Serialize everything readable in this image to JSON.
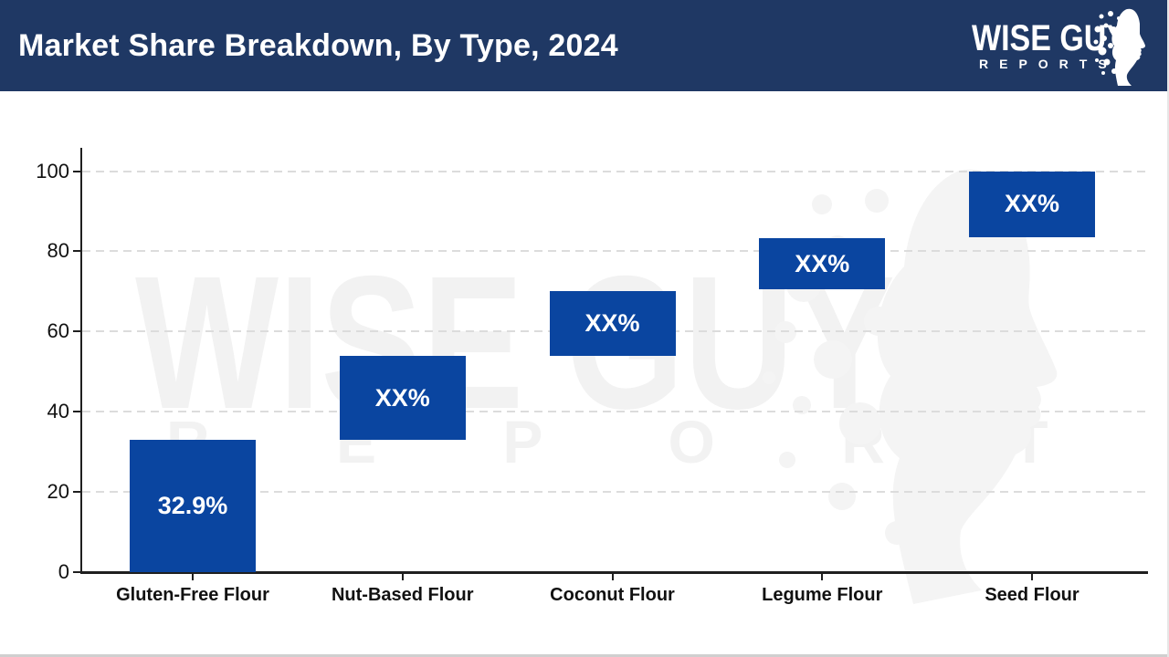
{
  "header": {
    "title": "Market Share Breakdown, By Type, 2024",
    "logo": {
      "line1": "WISE GUY",
      "line2": "REPORTS"
    }
  },
  "watermark": {
    "line1": "WISE GUY",
    "line2": "R E P O R T S"
  },
  "colors": {
    "header_bg": "#1f3864",
    "bar": "#0a45a0",
    "bar_label": "#ffffff",
    "grid": "#dcdcdc",
    "axis": "#1f1f1f",
    "tick_label": "#111111",
    "watermark": "#f2f2f2",
    "watermark_head": "#f4f4f4",
    "footer_line": "#cfcfcf"
  },
  "chart_data": {
    "type": "bar",
    "variant": "waterfall",
    "title": "Market Share Breakdown, By Type, 2024",
    "categories": [
      "Gluten-Free Flour",
      "Nut-Based Flour",
      "Coconut Flour",
      "Legume Flour",
      "Seed Flour"
    ],
    "series": [
      {
        "name": "Market Share",
        "segments": [
          {
            "category": "Gluten-Free Flour",
            "start": 0,
            "end": 32.9,
            "label": "32.9%"
          },
          {
            "category": "Nut-Based Flour",
            "start": 32.9,
            "end": 54.0,
            "label": "XX%"
          },
          {
            "category": "Coconut Flour",
            "start": 54.0,
            "end": 70.0,
            "label": "XX%"
          },
          {
            "category": "Legume Flour",
            "start": 70.5,
            "end": 83.3,
            "label": "XX%"
          },
          {
            "category": "Seed Flour",
            "start": 83.5,
            "end": 100.0,
            "label": "XX%"
          }
        ]
      }
    ],
    "xlabel": "",
    "ylabel": "",
    "ylim": [
      0,
      100
    ],
    "yticks": [
      0,
      20,
      40,
      60,
      80,
      100
    ],
    "grid": true,
    "grid_style": "dashed",
    "legend": "none"
  }
}
